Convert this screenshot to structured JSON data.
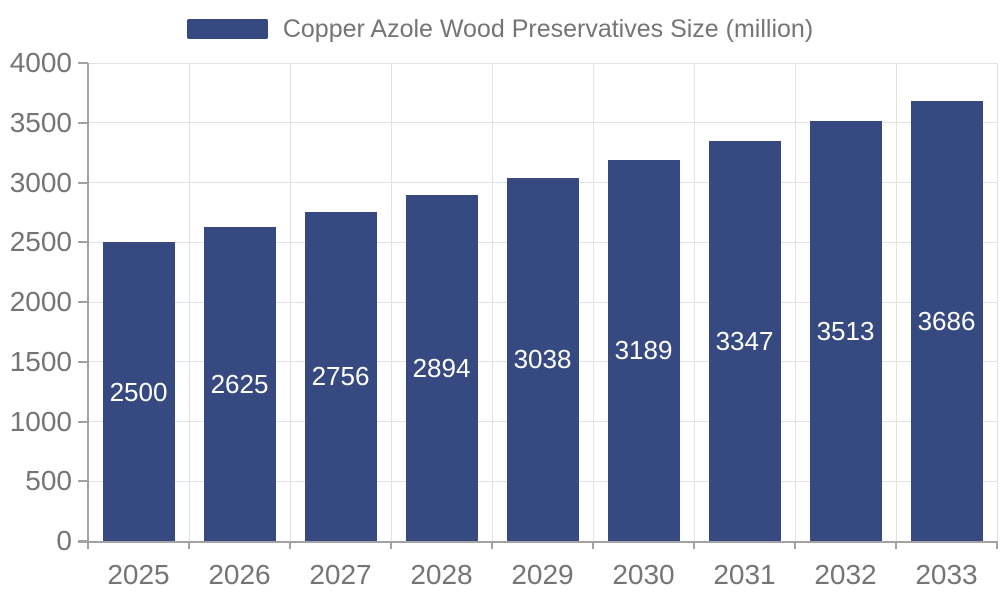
{
  "legend": {
    "label": "Copper Azole Wood Preservatives Size (million)"
  },
  "chart_data": {
    "type": "bar",
    "title": "Copper Azole Wood Preservatives Size (million)",
    "series_name": "Copper Azole Wood Preservatives Size (million)",
    "categories": [
      "2025",
      "2026",
      "2027",
      "2028",
      "2029",
      "2030",
      "2031",
      "2032",
      "2033"
    ],
    "values": [
      2500,
      2625,
      2756,
      2894,
      3038,
      3189,
      3347,
      3513,
      3686
    ],
    "bar_labels": [
      "2500",
      "2625",
      "2756",
      "2894",
      "3038",
      "3189",
      "3347",
      "3513",
      "3686"
    ],
    "xlabel": "",
    "ylabel": "",
    "ylim": [
      0,
      4000
    ],
    "ytick_step": 500,
    "yticks": [
      0,
      500,
      1000,
      1500,
      2000,
      2500,
      3000,
      3500,
      4000
    ],
    "grid": true,
    "legend_position": "top-center",
    "bar_label_position": "inside-middle",
    "colors": {
      "bar": "#364980",
      "bar_label": "#ffffff",
      "axis_text": "#757575",
      "gridline": "#e3e3e3",
      "axis_line": "#a2a2a2",
      "background": "#ffffff"
    }
  }
}
